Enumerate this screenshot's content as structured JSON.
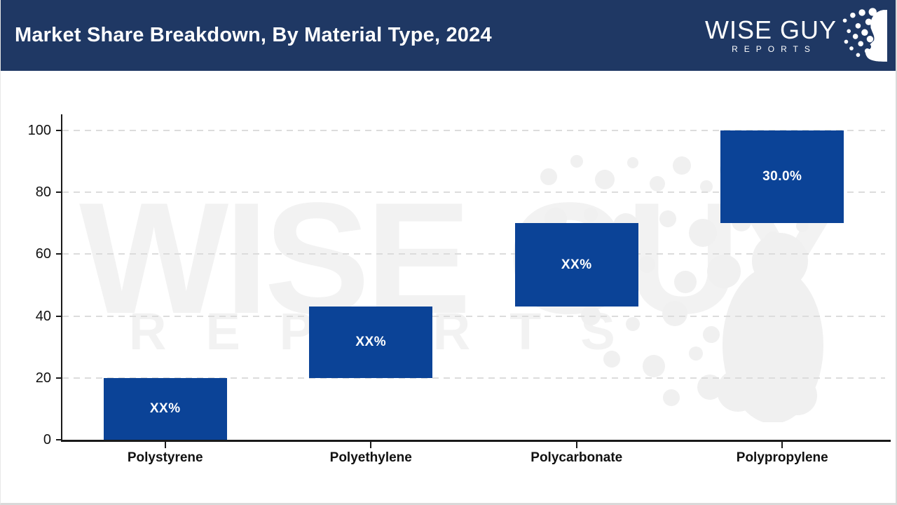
{
  "header": {
    "title": "Market Share Breakdown, By Material Type, 2024",
    "bg_color": "#1f3864",
    "logo": {
      "line1": "WISE GUY",
      "line2": "REPORTS"
    }
  },
  "watermark": {
    "line1": "WISE GUY",
    "line2": "REPORTS"
  },
  "chart_data": {
    "type": "bar",
    "subtype": "waterfall",
    "title": "Market Share Breakdown, By Material Type, 2024",
    "categories": [
      "Polystyrene",
      "Polyethylene",
      "Polycarbonate",
      "Polypropylene"
    ],
    "segments": [
      {
        "category": "Polystyrene",
        "start": 0,
        "end": 20,
        "value": 20,
        "label": "XX%"
      },
      {
        "category": "Polyethylene",
        "start": 20,
        "end": 43,
        "value": 23,
        "label": "XX%"
      },
      {
        "category": "Polycarbonate",
        "start": 43,
        "end": 70,
        "value": 27,
        "label": "XX%"
      },
      {
        "category": "Polypropylene",
        "start": 70,
        "end": 100,
        "value": 30,
        "label": "30.0%"
      }
    ],
    "cumulative": [
      20,
      43,
      70,
      100
    ],
    "yticks": [
      0,
      20,
      40,
      60,
      80,
      100
    ],
    "ylim": [
      0,
      104
    ],
    "xlabel": "",
    "ylabel": "",
    "legend": "none",
    "grid": "dashed-horizontal",
    "bar_color": "#0b4397",
    "axis_color": "#1a1a1a",
    "grid_color": "#dcdcdc",
    "bar_label_color": "#ffffff"
  }
}
